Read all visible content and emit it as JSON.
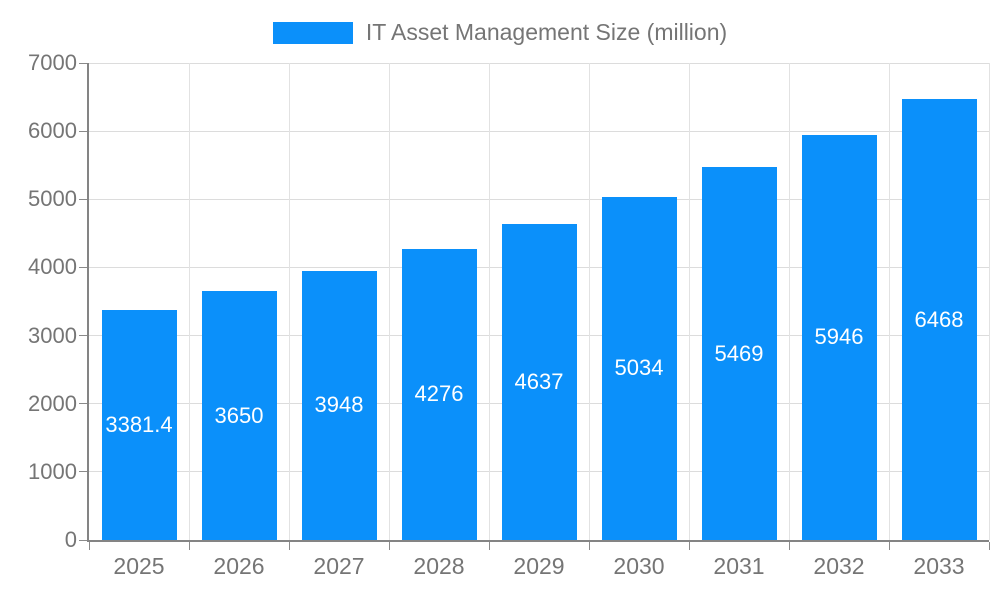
{
  "legend": {
    "label": "IT Asset Management Size (million)"
  },
  "chart_data": {
    "type": "bar",
    "title": "IT Asset Management Size (million)",
    "series_name": "IT Asset Management Size (million)",
    "categories": [
      "2025",
      "2026",
      "2027",
      "2028",
      "2029",
      "2030",
      "2031",
      "2032",
      "2033"
    ],
    "values": [
      3381.4,
      3650,
      3948,
      4276,
      4637,
      5034,
      5469,
      5946,
      6468
    ],
    "value_labels": [
      "3381.4",
      "3650",
      "3948",
      "4276",
      "4637",
      "5034",
      "5469",
      "5946",
      "6468"
    ],
    "xlabel": "",
    "ylabel": "",
    "ylim": [
      0,
      7000
    ],
    "yticks": [
      0,
      1000,
      2000,
      3000,
      4000,
      5000,
      6000,
      7000
    ],
    "grid": true,
    "legend_position": "top",
    "bar_color": "#0b90fa",
    "bar_label_color": "#ffffff",
    "axis_color": "#848484",
    "grid_color": "#dcdcdc",
    "tick_label_color": "#757575"
  }
}
